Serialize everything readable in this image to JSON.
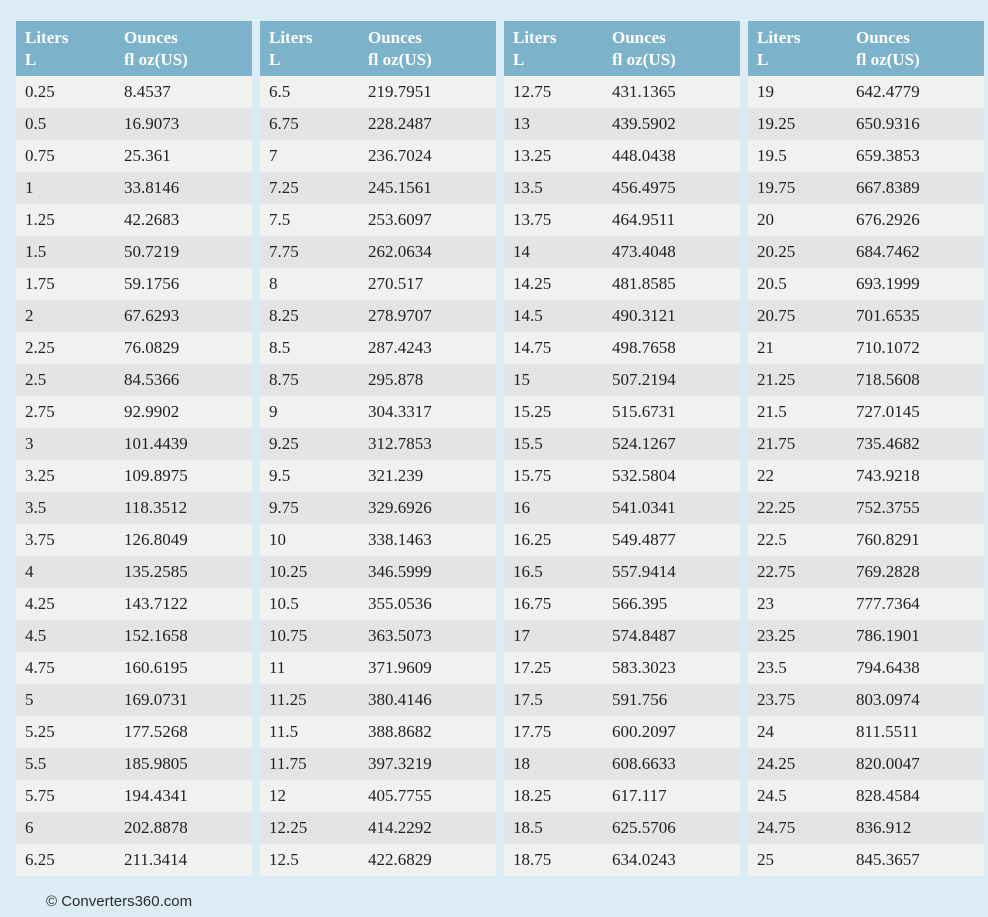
{
  "page": {
    "background_color": "#dcecf5"
  },
  "table": {
    "header": {
      "liters_title": "Liters",
      "liters_unit": "L",
      "ounces_title": "Ounces",
      "ounces_unit": "fl oz(US)",
      "background_color": "#7cb3ca",
      "text_color": "#ffffff"
    },
    "row_colors": {
      "odd": "#f1f1ef",
      "even": "#e4e4e7"
    }
  },
  "tables": [
    {
      "rows": [
        [
          "0.25",
          "8.4537"
        ],
        [
          "0.5",
          "16.9073"
        ],
        [
          "0.75",
          "25.361"
        ],
        [
          "1",
          "33.8146"
        ],
        [
          "1.25",
          "42.2683"
        ],
        [
          "1.5",
          "50.7219"
        ],
        [
          "1.75",
          "59.1756"
        ],
        [
          "2",
          "67.6293"
        ],
        [
          "2.25",
          "76.0829"
        ],
        [
          "2.5",
          "84.5366"
        ],
        [
          "2.75",
          "92.9902"
        ],
        [
          "3",
          "101.4439"
        ],
        [
          "3.25",
          "109.8975"
        ],
        [
          "3.5",
          "118.3512"
        ],
        [
          "3.75",
          "126.8049"
        ],
        [
          "4",
          "135.2585"
        ],
        [
          "4.25",
          "143.7122"
        ],
        [
          "4.5",
          "152.1658"
        ],
        [
          "4.75",
          "160.6195"
        ],
        [
          "5",
          "169.0731"
        ],
        [
          "5.25",
          "177.5268"
        ],
        [
          "5.5",
          "185.9805"
        ],
        [
          "5.75",
          "194.4341"
        ],
        [
          "6",
          "202.8878"
        ],
        [
          "6.25",
          "211.3414"
        ]
      ]
    },
    {
      "rows": [
        [
          "6.5",
          "219.7951"
        ],
        [
          "6.75",
          "228.2487"
        ],
        [
          "7",
          "236.7024"
        ],
        [
          "7.25",
          "245.1561"
        ],
        [
          "7.5",
          "253.6097"
        ],
        [
          "7.75",
          "262.0634"
        ],
        [
          "8",
          "270.517"
        ],
        [
          "8.25",
          "278.9707"
        ],
        [
          "8.5",
          "287.4243"
        ],
        [
          "8.75",
          "295.878"
        ],
        [
          "9",
          "304.3317"
        ],
        [
          "9.25",
          "312.7853"
        ],
        [
          "9.5",
          "321.239"
        ],
        [
          "9.75",
          "329.6926"
        ],
        [
          "10",
          "338.1463"
        ],
        [
          "10.25",
          "346.5999"
        ],
        [
          "10.5",
          "355.0536"
        ],
        [
          "10.75",
          "363.5073"
        ],
        [
          "11",
          "371.9609"
        ],
        [
          "11.25",
          "380.4146"
        ],
        [
          "11.5",
          "388.8682"
        ],
        [
          "11.75",
          "397.3219"
        ],
        [
          "12",
          "405.7755"
        ],
        [
          "12.25",
          "414.2292"
        ],
        [
          "12.5",
          "422.6829"
        ]
      ]
    },
    {
      "rows": [
        [
          "12.75",
          "431.1365"
        ],
        [
          "13",
          "439.5902"
        ],
        [
          "13.25",
          "448.0438"
        ],
        [
          "13.5",
          "456.4975"
        ],
        [
          "13.75",
          "464.9511"
        ],
        [
          "14",
          "473.4048"
        ],
        [
          "14.25",
          "481.8585"
        ],
        [
          "14.5",
          "490.3121"
        ],
        [
          "14.75",
          "498.7658"
        ],
        [
          "15",
          "507.2194"
        ],
        [
          "15.25",
          "515.6731"
        ],
        [
          "15.5",
          "524.1267"
        ],
        [
          "15.75",
          "532.5804"
        ],
        [
          "16",
          "541.0341"
        ],
        [
          "16.25",
          "549.4877"
        ],
        [
          "16.5",
          "557.9414"
        ],
        [
          "16.75",
          "566.395"
        ],
        [
          "17",
          "574.8487"
        ],
        [
          "17.25",
          "583.3023"
        ],
        [
          "17.5",
          "591.756"
        ],
        [
          "17.75",
          "600.2097"
        ],
        [
          "18",
          "608.6633"
        ],
        [
          "18.25",
          "617.117"
        ],
        [
          "18.5",
          "625.5706"
        ],
        [
          "18.75",
          "634.0243"
        ]
      ]
    },
    {
      "rows": [
        [
          "19",
          "642.4779"
        ],
        [
          "19.25",
          "650.9316"
        ],
        [
          "19.5",
          "659.3853"
        ],
        [
          "19.75",
          "667.8389"
        ],
        [
          "20",
          "676.2926"
        ],
        [
          "20.25",
          "684.7462"
        ],
        [
          "20.5",
          "693.1999"
        ],
        [
          "20.75",
          "701.6535"
        ],
        [
          "21",
          "710.1072"
        ],
        [
          "21.25",
          "718.5608"
        ],
        [
          "21.5",
          "727.0145"
        ],
        [
          "21.75",
          "735.4682"
        ],
        [
          "22",
          "743.9218"
        ],
        [
          "22.25",
          "752.3755"
        ],
        [
          "22.5",
          "760.8291"
        ],
        [
          "22.75",
          "769.2828"
        ],
        [
          "23",
          "777.7364"
        ],
        [
          "23.25",
          "786.1901"
        ],
        [
          "23.5",
          "794.6438"
        ],
        [
          "23.75",
          "803.0974"
        ],
        [
          "24",
          "811.5511"
        ],
        [
          "24.25",
          "820.0047"
        ],
        [
          "24.5",
          "828.4584"
        ],
        [
          "24.75",
          "836.912"
        ],
        [
          "25",
          "845.3657"
        ]
      ]
    }
  ],
  "footer": {
    "copyright": "© Converters360.com"
  }
}
